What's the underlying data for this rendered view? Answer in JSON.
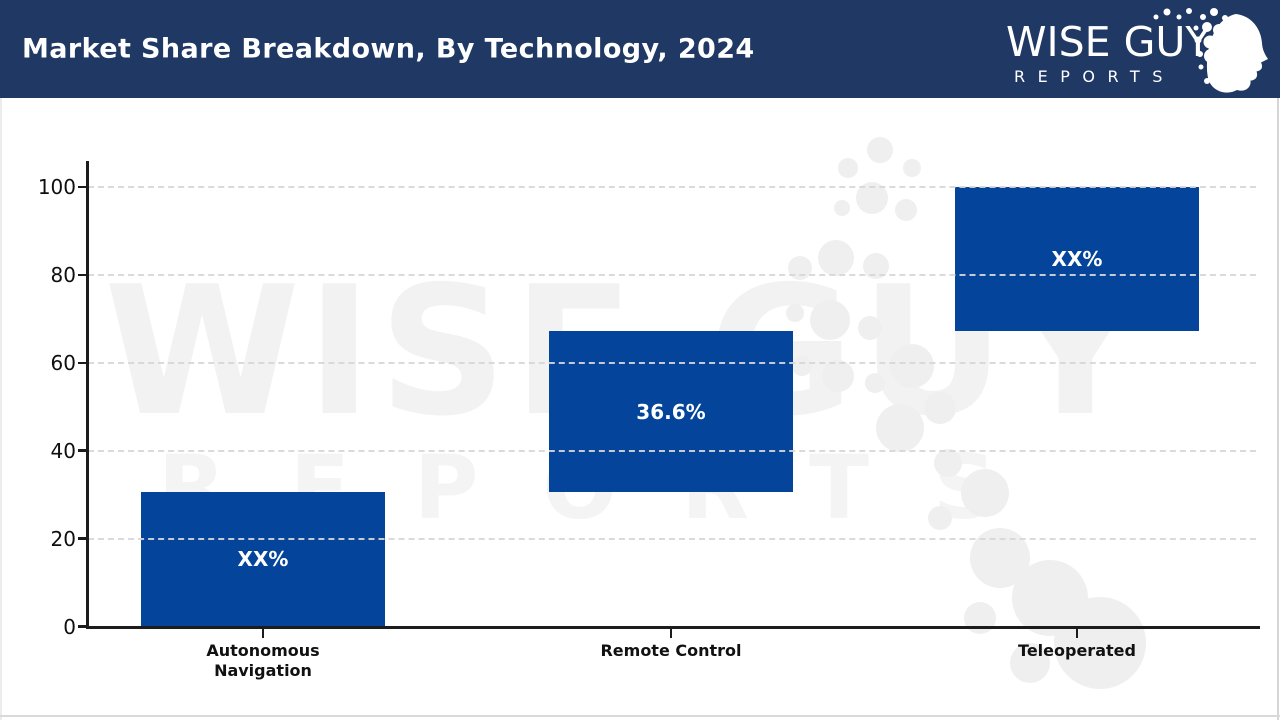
{
  "header": {
    "title": "Market Share Breakdown, By Technology, 2024",
    "bg_color": "#1f3864",
    "logo": {
      "line1": "WISE GUY",
      "line2": "REPORTS"
    }
  },
  "watermark": {
    "line1": "WISE GUY",
    "line2": "REPORTS"
  },
  "chart_data": {
    "type": "bar",
    "subtype": "waterfall",
    "title": "Market Share Breakdown, By Technology, 2024",
    "categories": [
      "Autonomous Navigation",
      "Remote Control",
      "Teleoperated"
    ],
    "bars": [
      {
        "category": "Autonomous Navigation",
        "tick_label": "Autonomous\nNavigation",
        "start": 0,
        "end": 30.6,
        "value_label": "XX%"
      },
      {
        "category": "Remote Control",
        "tick_label": "Remote Control",
        "start": 30.6,
        "end": 67.2,
        "value_label": "36.6%"
      },
      {
        "category": "Teleoperated",
        "tick_label": "Teleoperated",
        "start": 67.2,
        "end": 100,
        "value_label": "XX%"
      }
    ],
    "ylim": [
      0,
      100
    ],
    "yticks": [
      0,
      20,
      40,
      60,
      80,
      100
    ],
    "grid": "horizontal-dashed, drawn above bars",
    "legend": "none",
    "bar_color": "#04459b",
    "value_label_color": "#ffffff",
    "axis_color": "#1c1c1c",
    "grid_color": "#d7d7d7"
  }
}
